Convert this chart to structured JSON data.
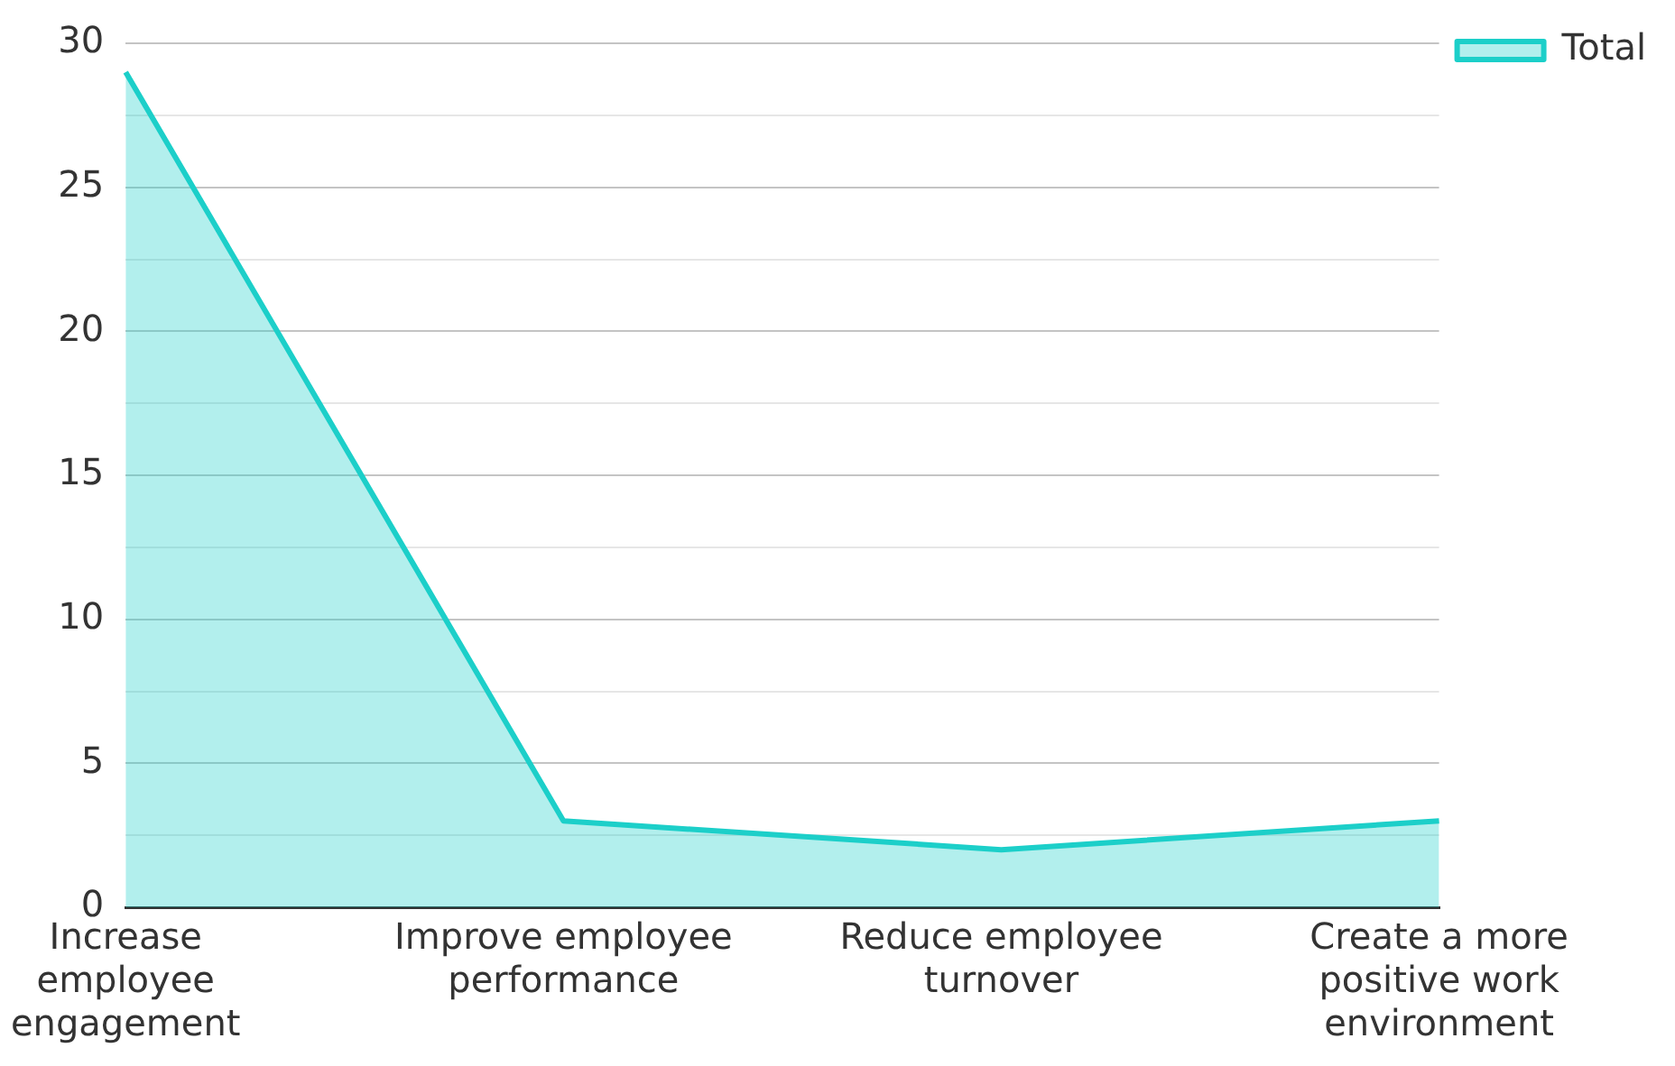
{
  "chart_data": {
    "type": "area",
    "categories": [
      "Increase employee engagement",
      "Improve employee performance",
      "Reduce employee turnover",
      "Create a more positive work environment"
    ],
    "series": [
      {
        "name": "Total",
        "color": "#1ccfc9",
        "values": [
          29,
          3,
          2,
          3
        ]
      }
    ],
    "ylim": [
      0,
      30
    ],
    "yticks": [
      0,
      {
        "value": 2.5,
        "label": null
      },
      5,
      {
        "value": 7.5,
        "label": null
      },
      10,
      {
        "value": 12.5,
        "label": null
      },
      15,
      {
        "value": 17.5,
        "label": null
      },
      20,
      {
        "value": 22.5,
        "label": null
      },
      25,
      {
        "value": 27.5,
        "label": null
      },
      30
    ],
    "grid": "y",
    "legend": "top right",
    "marker": "none"
  }
}
